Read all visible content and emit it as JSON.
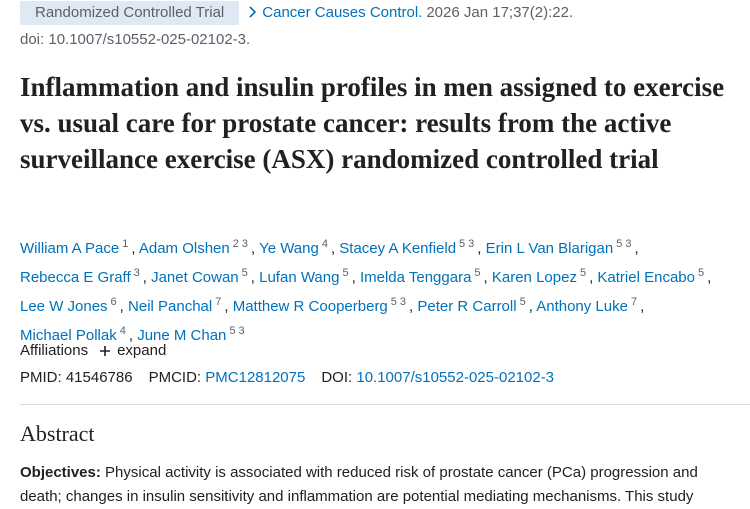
{
  "header": {
    "publication_type": "Randomized Controlled Trial",
    "journal": "Cancer Causes Control.",
    "citation": "2026 Jan 17;37(2):22.",
    "doi_line": "doi: 10.1007/s10552-025-02102-3."
  },
  "title": "Inflammation and insulin profiles in men assigned to exercise vs. usual care for prostate cancer: results from the active surveillance exercise (ASX) randomized controlled trial",
  "authors": [
    {
      "name": "William A Pace",
      "affiliations": [
        "1"
      ],
      "separator": ","
    },
    {
      "name": "Adam Olshen",
      "affiliations": [
        "2",
        "3"
      ],
      "separator": ","
    },
    {
      "name": "Ye Wang",
      "affiliations": [
        "4"
      ],
      "separator": ","
    },
    {
      "name": "Stacey A Kenfield",
      "affiliations": [
        "5",
        "3"
      ],
      "separator": ","
    },
    {
      "name": "Erin L Van Blarigan",
      "affiliations": [
        "5",
        "3"
      ],
      "separator": ","
    },
    {
      "name": "Rebecca E Graff",
      "affiliations": [
        "3"
      ],
      "separator": ","
    },
    {
      "name": "Janet Cowan",
      "affiliations": [
        "5"
      ],
      "separator": ","
    },
    {
      "name": "Lufan Wang",
      "affiliations": [
        "5"
      ],
      "separator": ","
    },
    {
      "name": "Imelda Tenggara",
      "affiliations": [
        "5"
      ],
      "separator": ","
    },
    {
      "name": "Karen Lopez",
      "affiliations": [
        "5"
      ],
      "separator": ","
    },
    {
      "name": "Katriel Encabo",
      "affiliations": [
        "5"
      ],
      "separator": ","
    },
    {
      "name": "Lee W Jones",
      "affiliations": [
        "6"
      ],
      "separator": ","
    },
    {
      "name": "Neil Panchal",
      "affiliations": [
        "7"
      ],
      "separator": ","
    },
    {
      "name": "Matthew R Cooperberg",
      "affiliations": [
        "5",
        "3"
      ],
      "separator": ","
    },
    {
      "name": "Peter R Carroll",
      "affiliations": [
        "5"
      ],
      "separator": ","
    },
    {
      "name": "Anthony Luke",
      "affiliations": [
        "7"
      ],
      "separator": ","
    },
    {
      "name": "Michael Pollak",
      "affiliations": [
        "4"
      ],
      "separator": ","
    },
    {
      "name": "June M Chan",
      "affiliations": [
        "5",
        "3"
      ]
    }
  ],
  "affiliations": {
    "label": "Affiliations",
    "toggle": "expand"
  },
  "identifiers": [
    {
      "label": "PMID:",
      "value": "41546786"
    },
    {
      "label": "PMCID:",
      "value": "PMC12812075"
    },
    {
      "label": "DOI:",
      "value": "10.1007/s10552-025-02102-3"
    }
  ],
  "abstract": {
    "heading": "Abstract",
    "sections": [
      {
        "label": "Objectives:",
        "text": "Physical activity is associated with reduced risk of prostate cancer (PCa) progression and death; changes in insulin sensitivity and inflammation are potential mediating mechanisms. This study"
      }
    ]
  }
}
